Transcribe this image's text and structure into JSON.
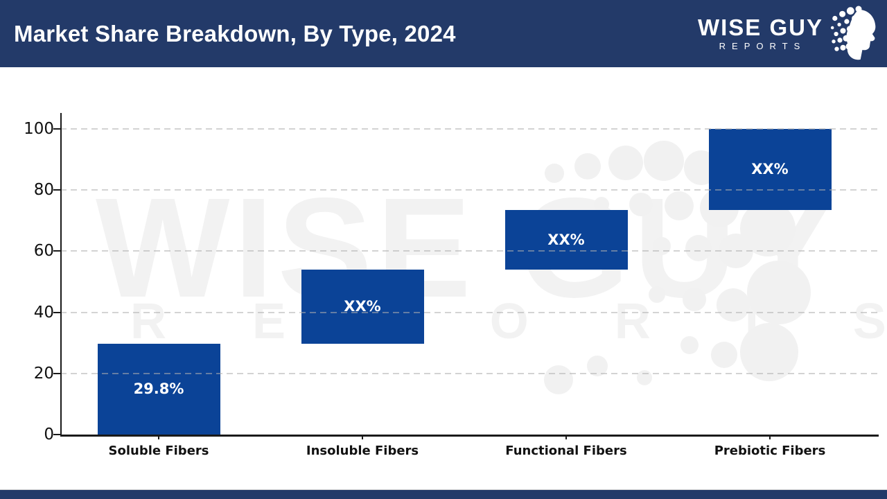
{
  "header": {
    "title": "Market Share Breakdown, By Type, 2024",
    "logo": {
      "line1": "WISE GUY",
      "line2": "REPORTS"
    },
    "bg_color": "#233a69",
    "text_color": "#ffffff"
  },
  "watermark": {
    "line1": "WISE GUY",
    "line2": "R E P O R T S"
  },
  "chart_data": {
    "type": "bar",
    "subtype": "waterfall",
    "title": "Market Share Breakdown, By Type, 2024",
    "categories": [
      "Soluble Fibers",
      "Insoluble Fibers",
      "Functional Fibers",
      "Prebiotic Fibers"
    ],
    "segments": [
      {
        "category": "Soluble Fibers",
        "start": 0,
        "end": 29.8,
        "label": "29.8%"
      },
      {
        "category": "Insoluble Fibers",
        "start": 29.8,
        "end": 54,
        "label": "XX%"
      },
      {
        "category": "Functional Fibers",
        "start": 54,
        "end": 73.5,
        "label": "XX%"
      },
      {
        "category": "Prebiotic Fibers",
        "start": 73.5,
        "end": 100,
        "label": "XX%"
      }
    ],
    "ylim": [
      0,
      100
    ],
    "yticks": [
      0,
      20,
      40,
      60,
      80,
      100
    ],
    "xlabel": "",
    "ylabel": "",
    "grid": "horizontal dashed, drawn over bars",
    "legend": "none",
    "bar_color": "#0b4397",
    "bar_label_color": "#ffffff",
    "axis_color": "#1a1a1a",
    "grid_color": "#c9c9c9"
  },
  "footer": {
    "bg_color": "#233a69"
  }
}
